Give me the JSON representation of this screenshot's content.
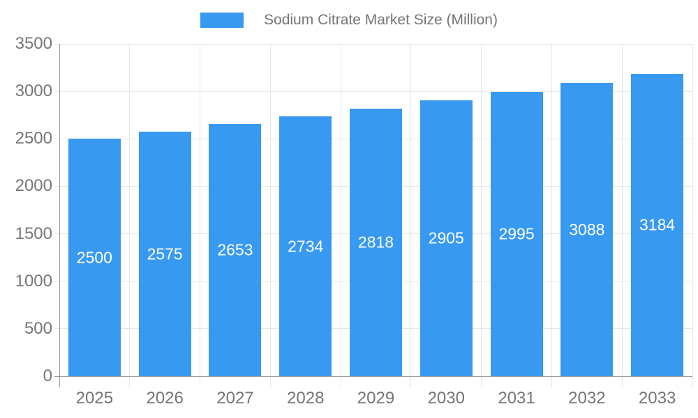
{
  "legend": {
    "label": "Sodium Citrate Market Size (Million)"
  },
  "chart_data": {
    "type": "bar",
    "title": "Sodium Citrate Market Size (Million)",
    "categories": [
      "2025",
      "2026",
      "2027",
      "2028",
      "2029",
      "2030",
      "2031",
      "2032",
      "2033"
    ],
    "values": [
      2500,
      2575,
      2653,
      2734,
      2818,
      2905,
      2995,
      3088,
      3184
    ],
    "xlabel": "",
    "ylabel": "",
    "ylim": [
      0,
      3500
    ],
    "ytick_step": 500,
    "grid": true,
    "legend_position": "top",
    "colors": {
      "bar": "#3899f0",
      "value_label": "#ffffff",
      "axis_text": "#757575",
      "grid_line": "#e6e6e6",
      "axis_line": "#9e9e9e"
    }
  }
}
